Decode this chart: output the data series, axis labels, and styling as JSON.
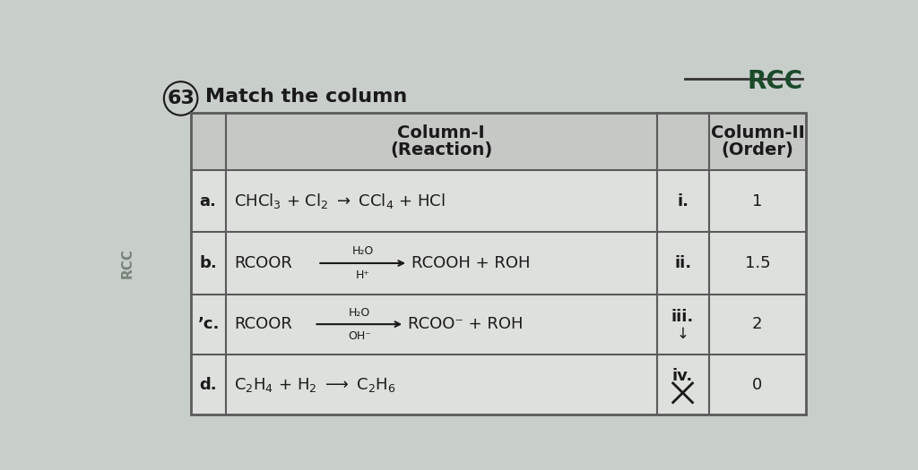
{
  "title_num": "63",
  "title_text": "Match the column",
  "rcc_text": "RCC",
  "header_col1_line1": "Column-I",
  "header_col1_line2": "(Reaction)",
  "header_col2_line1": "Column-II",
  "header_col2_line2": "(Order)",
  "row_labels": [
    "a.",
    "b.",
    "c.",
    "d."
  ],
  "roman_labels": [
    "i.",
    "ii.",
    "iii.",
    "iv."
  ],
  "order_values": [
    "1",
    "1.5",
    "2",
    "0"
  ],
  "bg_color": "#c8ceca",
  "table_bg": "#dde0dc",
  "header_bg": "#c5c8c4",
  "border_color": "#5a5a5a",
  "text_color": "#1a1a1a",
  "rcc_color": "#1a4a2a"
}
